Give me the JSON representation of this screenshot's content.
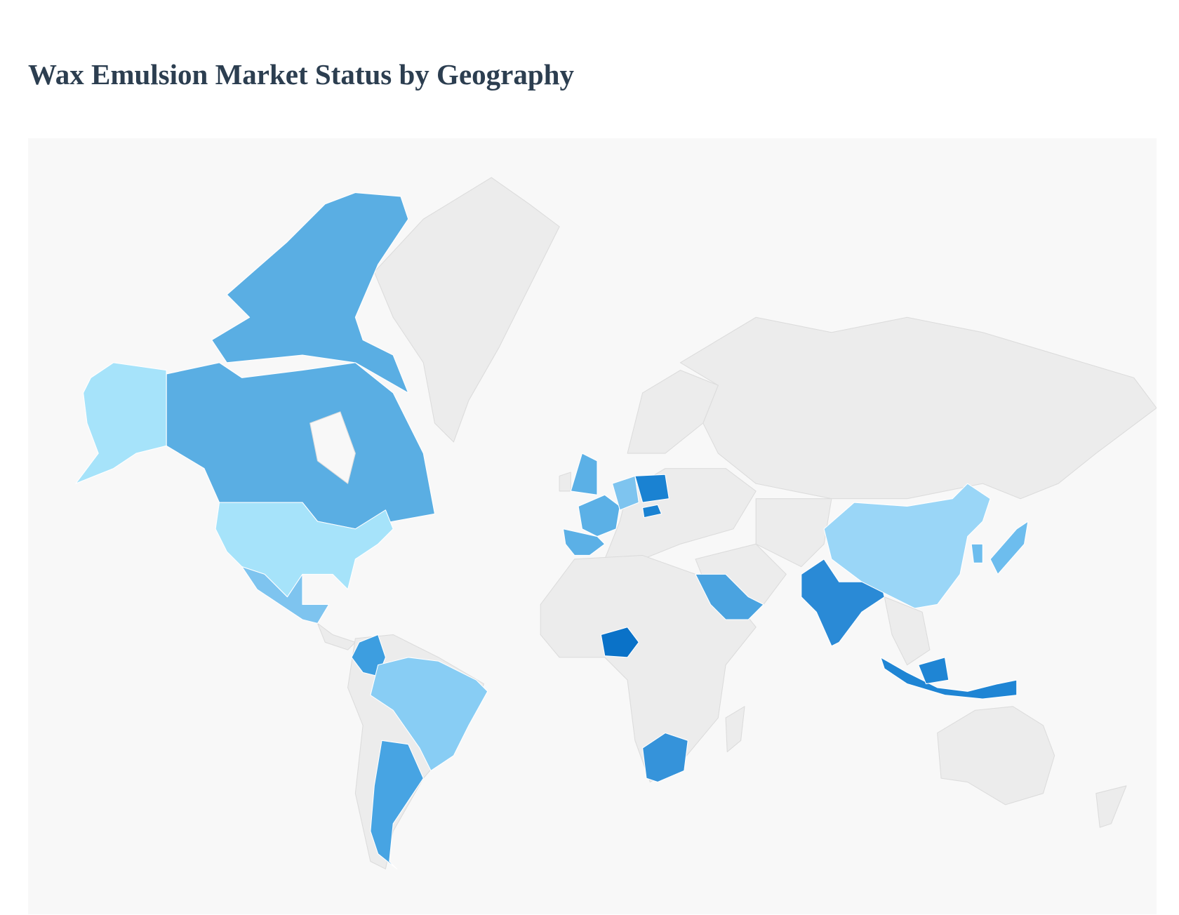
{
  "title": "Wax Emulsion Market Status by Geography"
}
